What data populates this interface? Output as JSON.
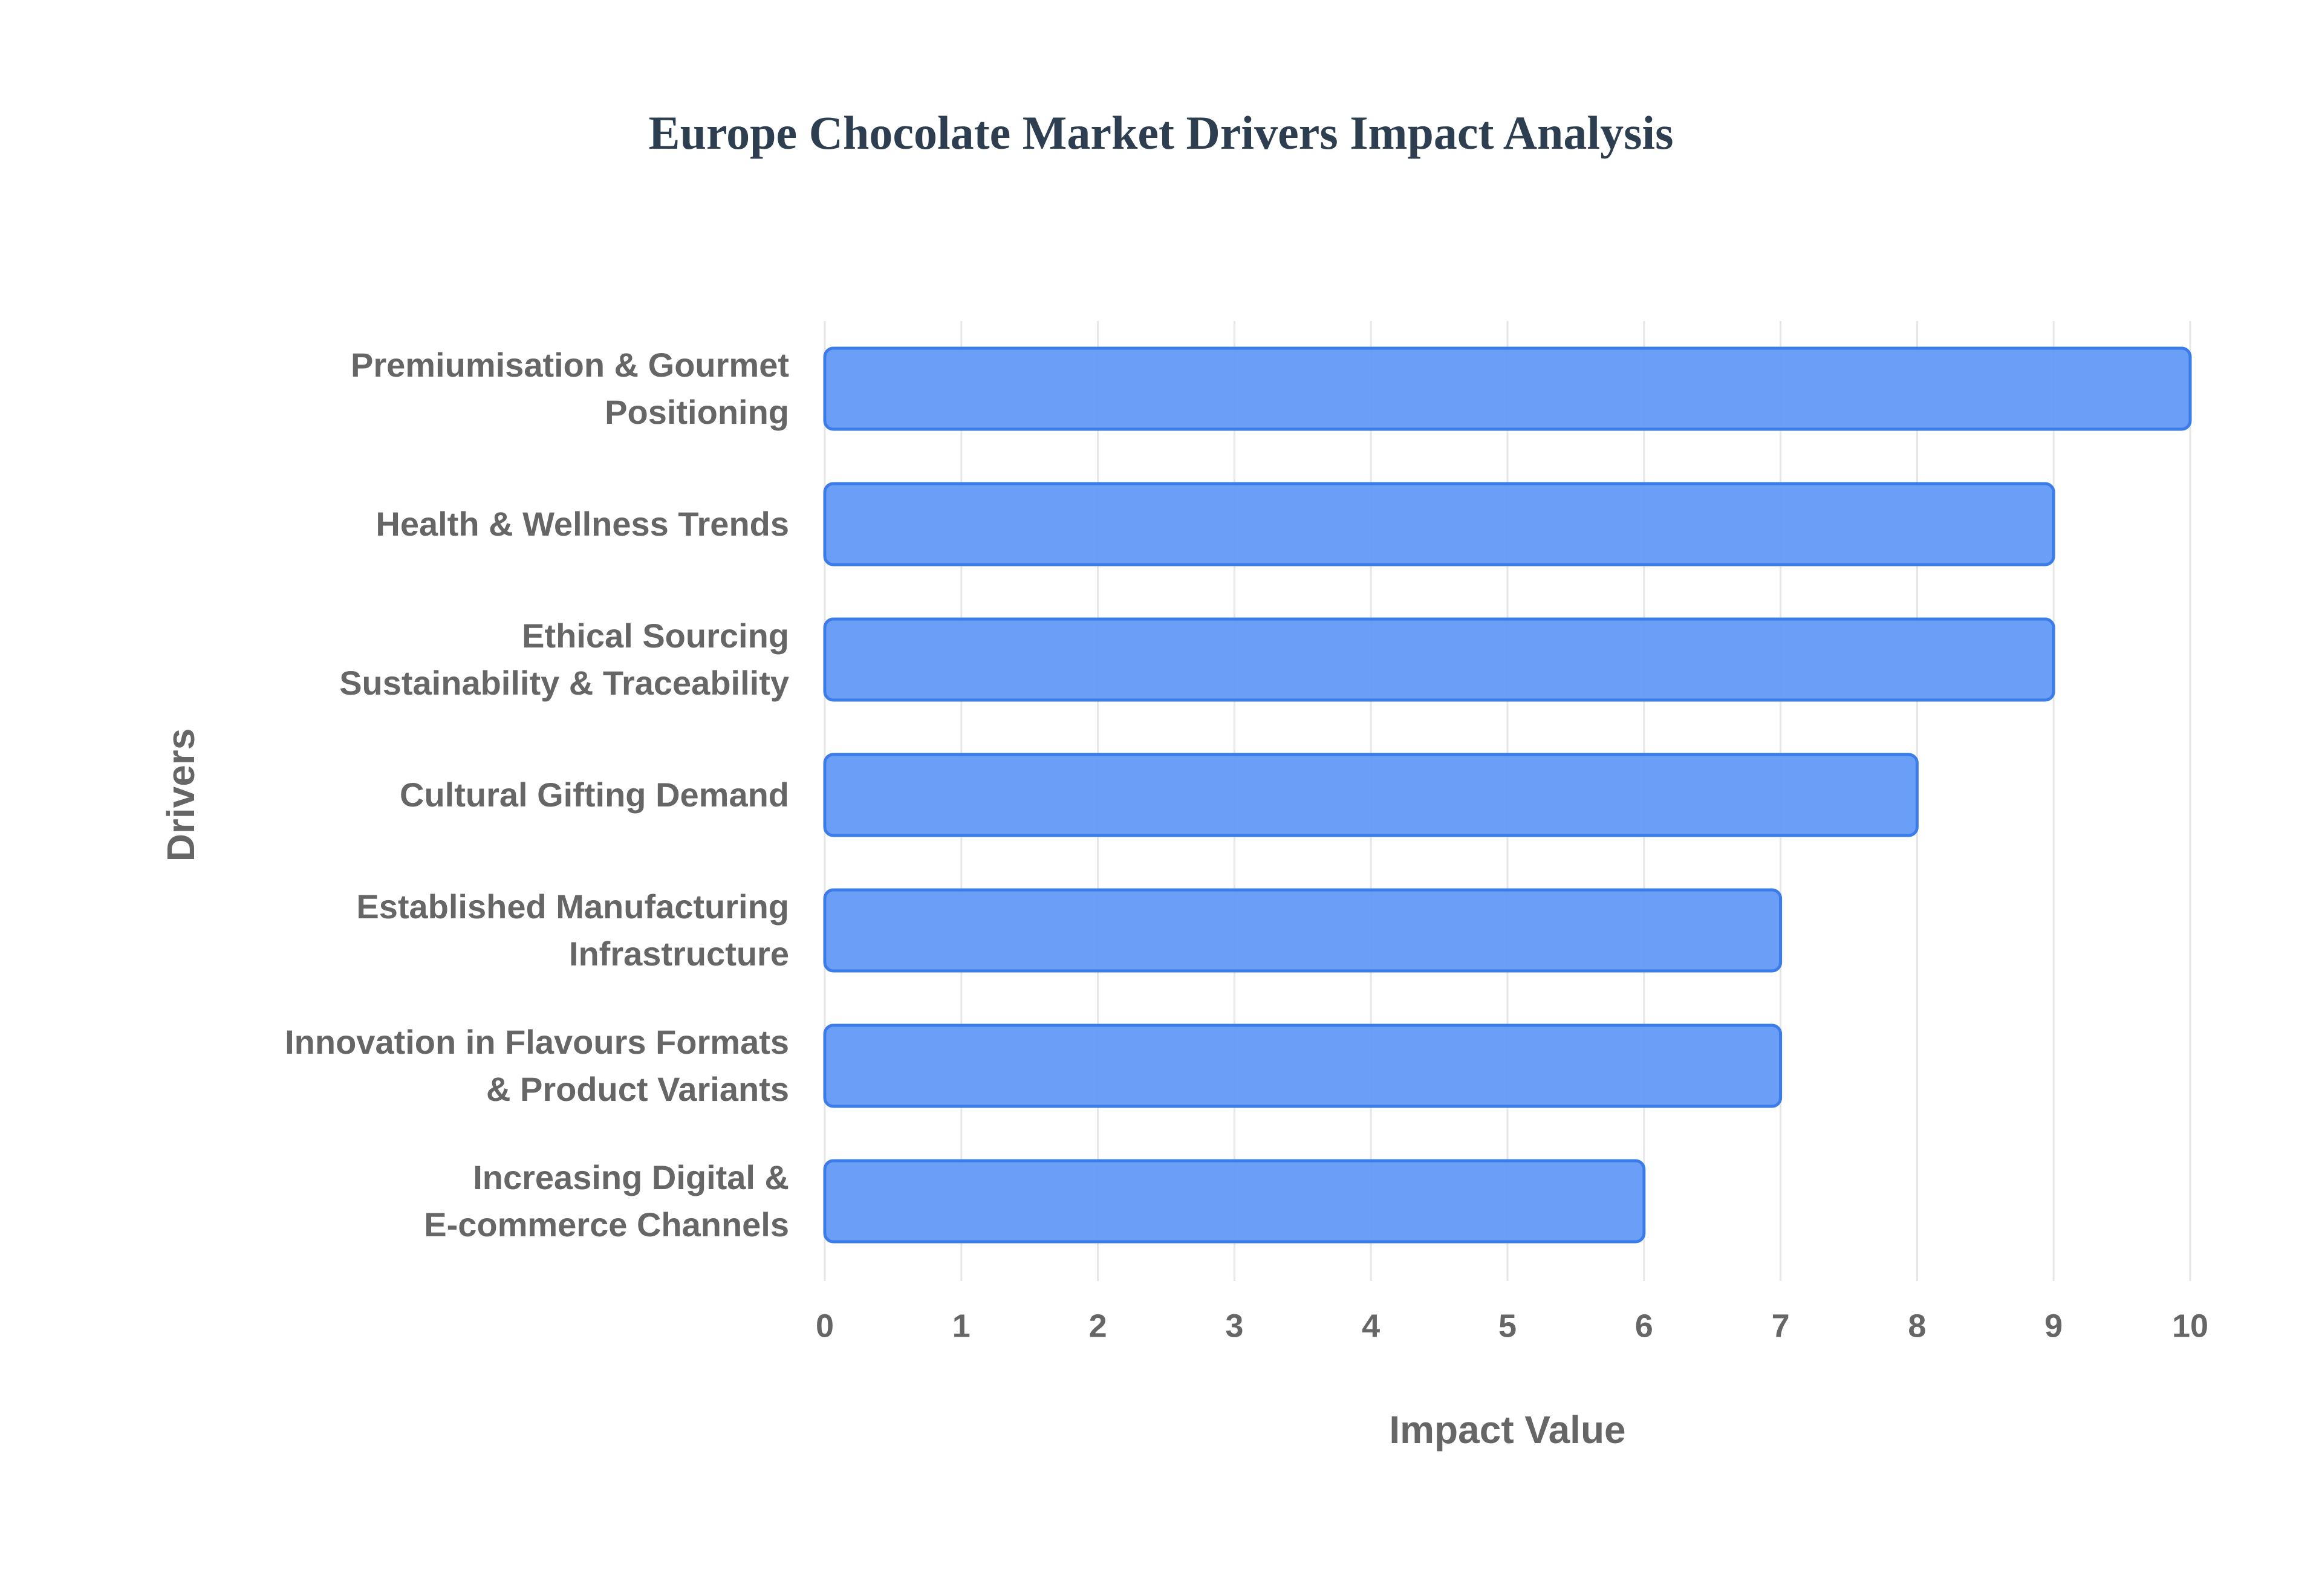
{
  "chart_data": {
    "type": "bar",
    "orientation": "horizontal",
    "title": "Europe Chocolate Market Drivers Impact Analysis",
    "x_label": "Impact Value",
    "y_label": "Drivers",
    "categories": [
      "Premiumisation & Gourmet\nPositioning",
      "Health & Wellness Trends",
      "Ethical Sourcing\nSustainability & Traceability",
      "Cultural Gifting Demand",
      "Established Manufacturing\nInfrastructure",
      "Innovation in Flavours Formats\n& Product Variants",
      "Increasing Digital &\nE-commerce Channels"
    ],
    "values": [
      10,
      9,
      9,
      8,
      7,
      7,
      6
    ],
    "color": "#6399f5",
    "edge_color": "#3b7de8",
    "xlim": [
      0,
      10
    ],
    "xticks": [
      0,
      1,
      2,
      3,
      4,
      5,
      6,
      7,
      8,
      9,
      10
    ],
    "grid": true
  }
}
